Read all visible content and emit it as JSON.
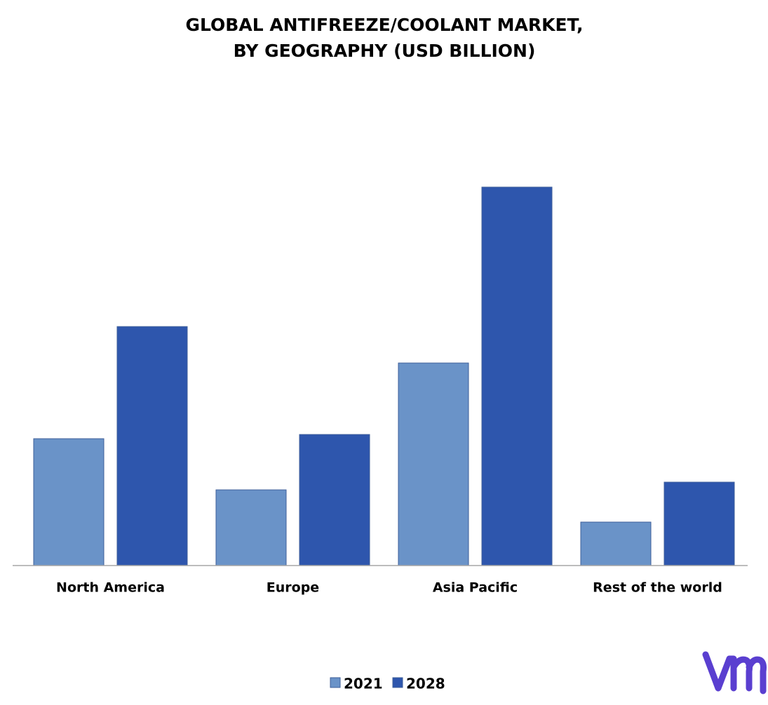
{
  "chart_data": {
    "type": "bar",
    "title": [
      "GLOBAL ANTIFREEZE/COOLANT  MARKET,",
      "BY GEOGRAPHY (USD BILLION)"
    ],
    "categories": [
      "North America",
      "Europe",
      "Asia Pacific",
      "Rest of the world"
    ],
    "series": [
      {
        "name": "2021",
        "color": "#6a93c8",
        "values": [
          1.81,
          1.08,
          2.89,
          0.62
        ]
      },
      {
        "name": "2028",
        "color": "#2e56ad",
        "values": [
          3.41,
          1.87,
          5.4,
          1.19
        ]
      }
    ],
    "ylim": [
      0,
      6
    ],
    "grid": false,
    "legend": "bottom"
  }
}
